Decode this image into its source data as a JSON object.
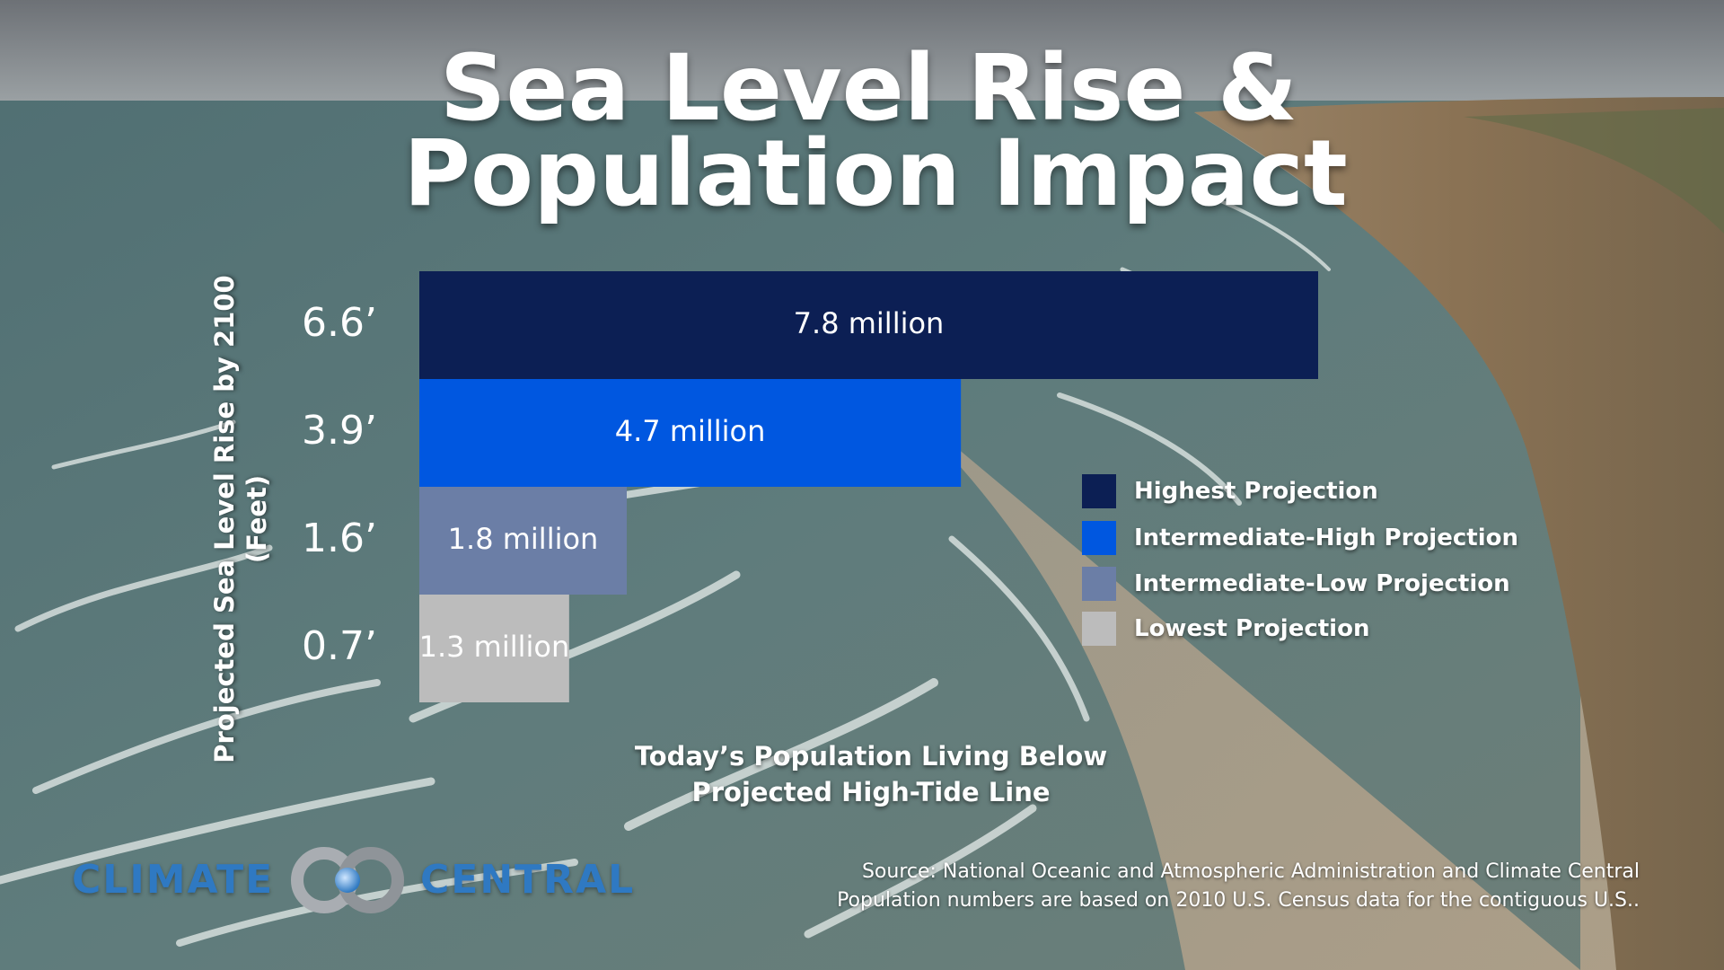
{
  "title": {
    "line1": "Sea Level Rise &",
    "line2": "Population Impact"
  },
  "chart_data": {
    "type": "bar",
    "orientation": "horizontal",
    "title": "Sea Level Rise & Population Impact",
    "ylabel": "Projected Sea Level Rise by 2100 (Feet)",
    "ylabel_lines": [
      "Projected Sea Level Rise by 2100",
      "(Feet)"
    ],
    "xlabel": "Today’s Population Living Below Projected High-Tide Line",
    "xlabel_lines": [
      "Today’s Population Living Below",
      "Projected High-Tide Line"
    ],
    "categories": [
      "6.6’",
      "3.9’",
      "1.6’",
      "0.7’"
    ],
    "values": [
      7.8,
      4.7,
      1.8,
      1.3
    ],
    "value_unit": "million",
    "data_labels": [
      "7.8 million",
      "4.7 million",
      "1.8 million",
      "1.3 million"
    ],
    "colors": [
      "#0c1f54",
      "#0057e0",
      "#6b7ea6",
      "#bcbcbc"
    ],
    "xlim": [
      0,
      7.8
    ],
    "grid": false,
    "legend_position": "right",
    "legend": [
      {
        "label": "Highest Projection",
        "color": "#0c1f54"
      },
      {
        "label": "Intermediate-High Projection",
        "color": "#0057e0"
      },
      {
        "label": "Intermediate-Low Projection",
        "color": "#6b7ea6"
      },
      {
        "label": "Lowest Projection",
        "color": "#bcbcbc"
      }
    ]
  },
  "logo": {
    "left": "CLIMATE",
    "right": "CENTRAL"
  },
  "source": {
    "line1": "Source: National Oceanic and Atmospheric Administration and Climate Central",
    "line2": "Population numbers are based on 2010 U.S. Census data for the contiguous U.S.."
  }
}
